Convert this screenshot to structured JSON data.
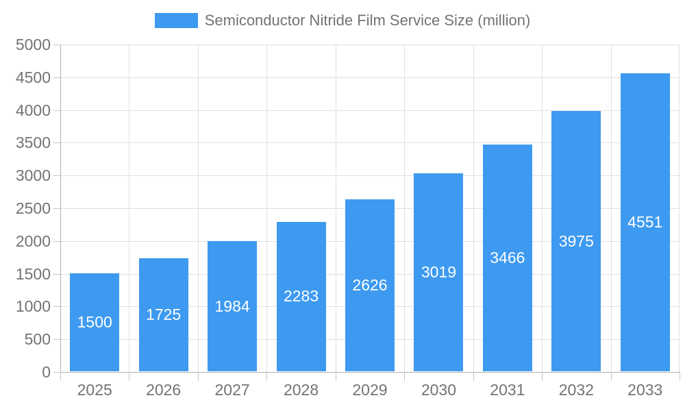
{
  "chart_data": {
    "type": "bar",
    "title": "Semiconductor Nitride Film Service Size (million)",
    "legend": {
      "position": "top",
      "entries": [
        "Semiconductor Nitride Film Service Size (million)"
      ]
    },
    "categories": [
      "2025",
      "2026",
      "2027",
      "2028",
      "2029",
      "2030",
      "2031",
      "2032",
      "2033"
    ],
    "values": [
      1500,
      1725,
      1984,
      2283,
      2626,
      3019,
      3466,
      3975,
      4551
    ],
    "xlabel": "",
    "ylabel": "",
    "ylim": [
      0,
      5000
    ],
    "ytick_step": 500,
    "yticks": [
      0,
      500,
      1000,
      1500,
      2000,
      2500,
      3000,
      3500,
      4000,
      4500,
      5000
    ],
    "grid": true,
    "bar_value_labels_inside": true,
    "colors": {
      "bar": "#3d9af0",
      "bar_value_label": "#ffffff",
      "axis_text": "#737373",
      "legend_text": "#737373",
      "gridline": "#e0e0e0",
      "axis_line": "#b0b0b0",
      "tick": "#c6c6c6",
      "background": "#ffffff"
    }
  }
}
